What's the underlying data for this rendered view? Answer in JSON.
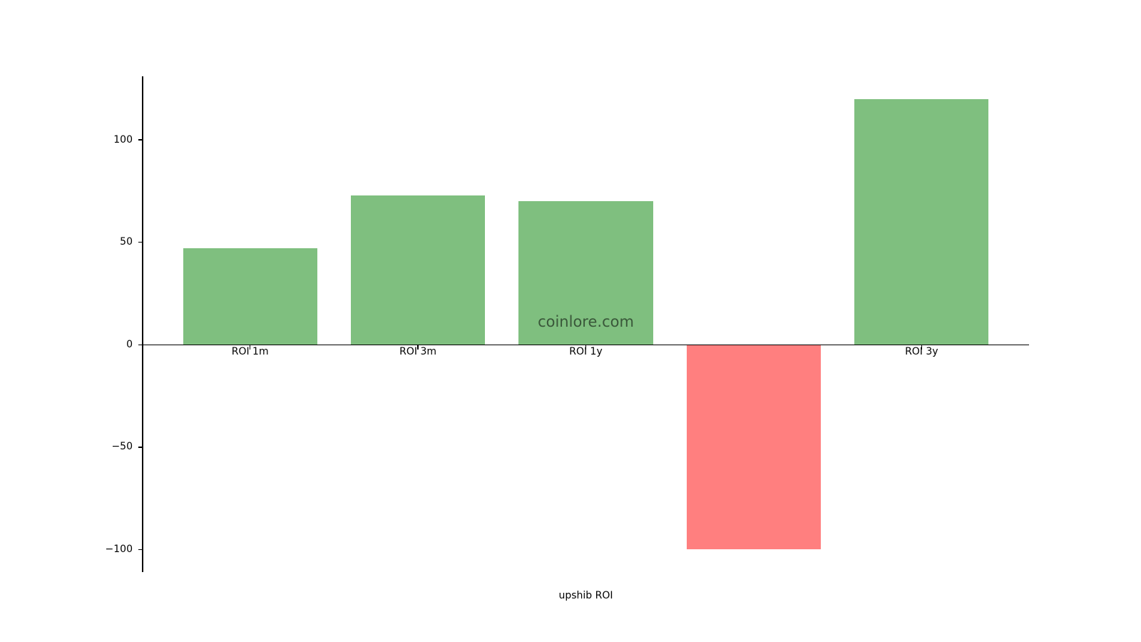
{
  "watermark": "coinlore.com",
  "chart_data": {
    "type": "bar",
    "title": "",
    "xlabel": "upshib ROI",
    "ylabel": "",
    "categories": [
      "ROI 1m",
      "ROI 3m",
      "ROI 1y",
      "",
      "ROI 3y"
    ],
    "values": [
      47,
      73,
      70,
      -100,
      120
    ],
    "bar_colors": [
      "#7FBF7F",
      "#7FBF7F",
      "#7FBF7F",
      "#FF7F7F",
      "#7FBF7F"
    ],
    "positive_color": "#7FBF7F",
    "negative_color": "#FF7F7F",
    "bar_width_units": 0.8,
    "yticks": [
      100,
      50,
      0,
      -50,
      -100
    ],
    "ytick_labels": [
      "100",
      "50",
      "0",
      "−50",
      "−100"
    ],
    "ylim": [
      -111,
      131
    ],
    "xlim": [
      -0.64,
      4.64
    ],
    "grid": false,
    "legend": null,
    "axis_color": "#000000",
    "text_color": "#000000",
    "background_color": "#FFFFFF"
  }
}
